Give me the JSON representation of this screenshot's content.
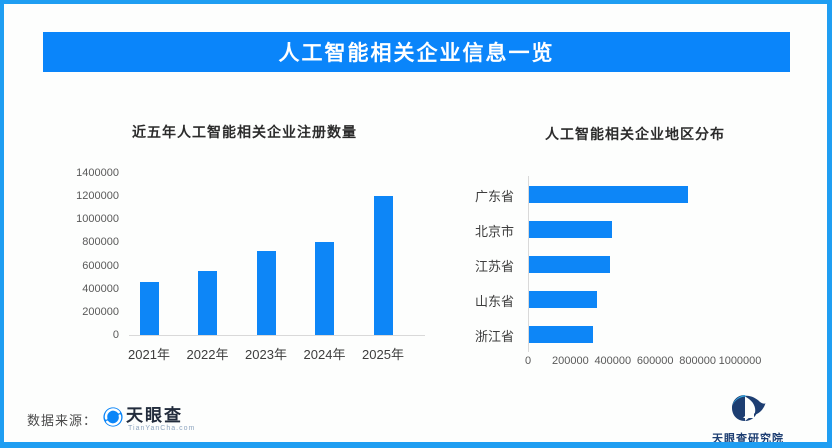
{
  "page": {
    "title": "人工智能相关企业信息一览",
    "accent_color": "#0a85fa",
    "bar_color": "#0d86f7",
    "border_color": "#1f9ef2"
  },
  "footer": {
    "source_label": "数据来源：",
    "source_logo_text": "天眼查",
    "source_logo_sub": "TianYanCha.com",
    "institute_logo_text": "天眼查研究院"
  },
  "chart_data": [
    {
      "type": "bar",
      "orientation": "vertical",
      "title": "近五年人工智能相关企业注册数量",
      "categories": [
        "2021年",
        "2022年",
        "2023年",
        "2024年",
        "2025年"
      ],
      "values": [
        460000,
        550000,
        730000,
        800000,
        1200000
      ],
      "xlabel": "",
      "ylabel": "",
      "ylim": [
        0,
        1400000
      ],
      "yticks": [
        0,
        200000,
        400000,
        600000,
        800000,
        1000000,
        1200000,
        1400000
      ],
      "grid": false,
      "legend": "none",
      "bar_color": "#0d86f7"
    },
    {
      "type": "bar",
      "orientation": "horizontal",
      "title": "人工智能相关企业地区分布",
      "categories": [
        "广东省",
        "北京市",
        "江苏省",
        "山东省",
        "浙江省"
      ],
      "values": [
        750000,
        390000,
        380000,
        320000,
        300000
      ],
      "xlabel": "",
      "ylabel": "",
      "xlim": [
        0,
        1000000
      ],
      "xticks": [
        0,
        200000,
        400000,
        600000,
        800000,
        1000000
      ],
      "grid": false,
      "legend": "none",
      "bar_color": "#0d86f7"
    }
  ]
}
